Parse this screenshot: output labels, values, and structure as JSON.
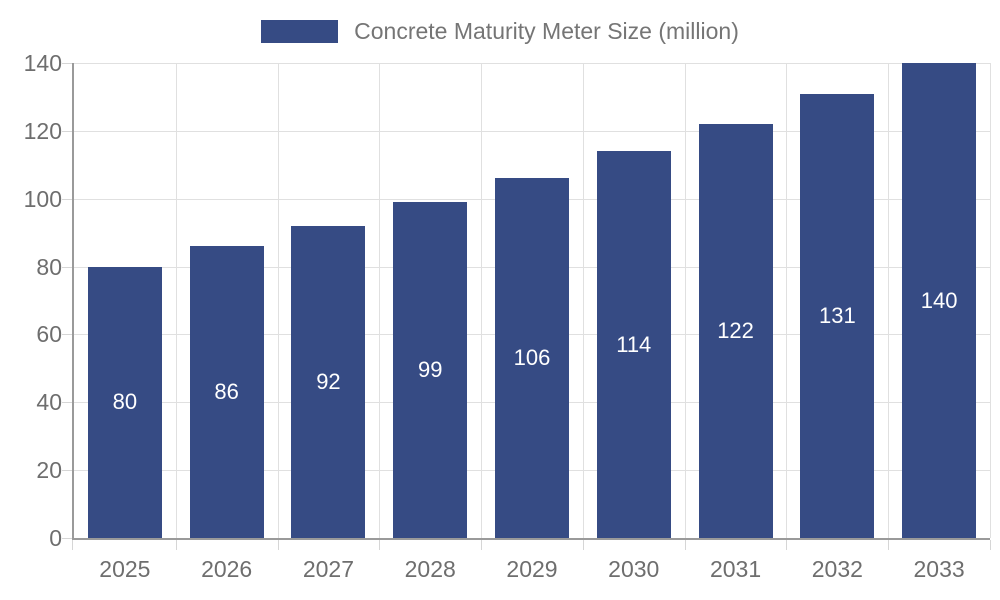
{
  "legend": {
    "label": "Concrete Maturity Meter Size (million)"
  },
  "colors": {
    "bar": "#364b84",
    "grid": "#e0e0e0",
    "axis": "#9a9a9a",
    "tick_mark": "#d6d6d6",
    "axis_text": "#6e6e6e",
    "legend_text": "#757575",
    "value_text": "#ffffff",
    "background": "#ffffff"
  },
  "chart_data": {
    "type": "bar",
    "title": "Concrete Maturity Meter Size (million)",
    "legend_entries": [
      "Concrete Maturity Meter Size (million)"
    ],
    "legend_position": "top-center",
    "categories": [
      "2025",
      "2026",
      "2027",
      "2028",
      "2029",
      "2030",
      "2031",
      "2032",
      "2033"
    ],
    "values": [
      80,
      86,
      92,
      99,
      106,
      114,
      122,
      131,
      140
    ],
    "bar_labels_shown": true,
    "xlabel": "",
    "ylabel": "",
    "ylim": [
      0,
      140
    ],
    "yticks": [
      0,
      20,
      40,
      60,
      80,
      100,
      120,
      140
    ],
    "grid": true
  }
}
